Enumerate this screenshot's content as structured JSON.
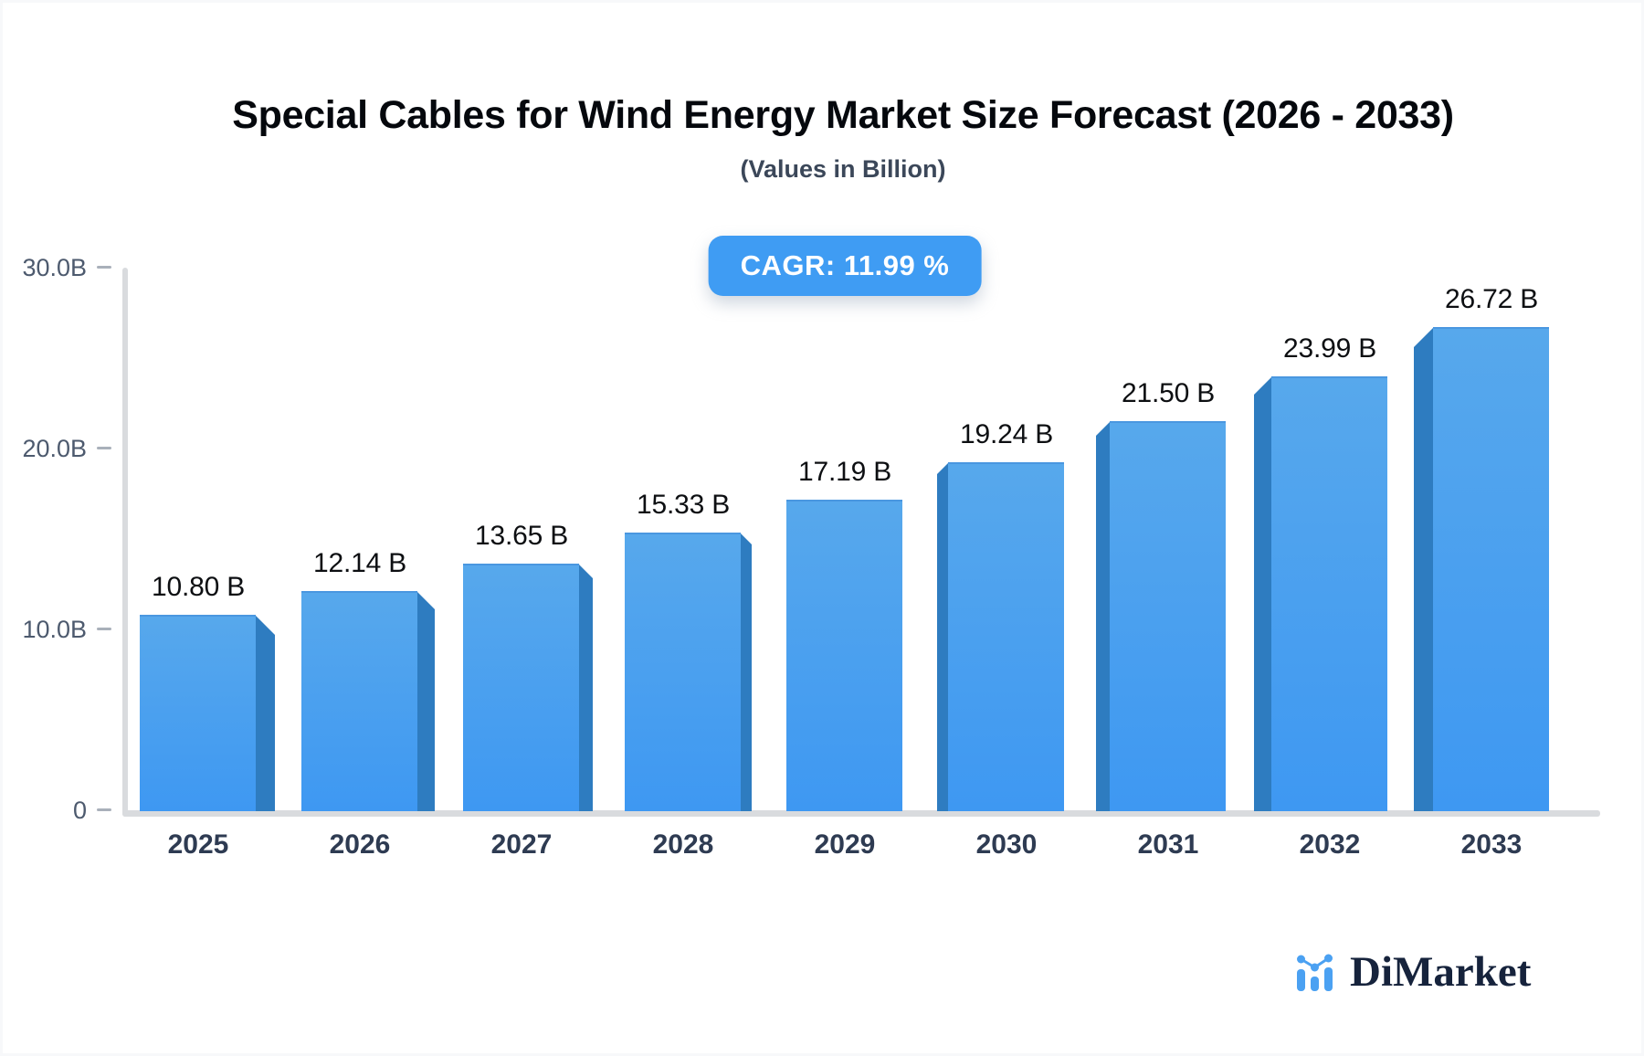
{
  "header": {
    "title": "Special Cables for Wind Energy Market Size Forecast (2026 - 2033)",
    "subtitle": "(Values in Billion)",
    "cagr_badge": "CAGR: 11.99 %"
  },
  "chart_data": {
    "type": "bar",
    "title": "Special Cables for Wind Energy Market Size Forecast (2026 - 2033)",
    "subtitle": "(Values in Billion)",
    "categories": [
      "2025",
      "2026",
      "2027",
      "2028",
      "2029",
      "2030",
      "2031",
      "2032",
      "2033"
    ],
    "values": [
      10.8,
      12.14,
      13.65,
      15.33,
      17.19,
      19.24,
      21.5,
      23.99,
      26.72
    ],
    "value_labels": [
      "10.80 B",
      "12.14 B",
      "13.65 B",
      "15.33 B",
      "17.19 B",
      "19.24 B",
      "21.50 B",
      "23.99 B",
      "26.72 B"
    ],
    "cagr": "11.99 %",
    "xlabel": "",
    "ylabel": "",
    "ylim": [
      0,
      30
    ],
    "yticks": [
      {
        "label": "30.0B",
        "value": 30
      },
      {
        "label": "20.0B",
        "value": 20
      },
      {
        "label": "10.0B",
        "value": 10
      },
      {
        "label": "0",
        "value": 0
      }
    ],
    "grid": false,
    "legend": false,
    "colors": {
      "bar_front_top": "#57a8ec",
      "bar_front_bottom": "#3e98f2",
      "bar_side": "#2e7cc0",
      "badge_bg": "#3f9cf3",
      "axis": "#d9dbde",
      "ytick_text": "#4d5a6e",
      "xtick_text": "#2e3b52",
      "value_text": "#0d0f12"
    }
  },
  "branding": {
    "name": "DiMarket",
    "icon": "dimarket-bars-icon",
    "icon_color": "#4ba1f2",
    "text_color": "#16233c"
  }
}
